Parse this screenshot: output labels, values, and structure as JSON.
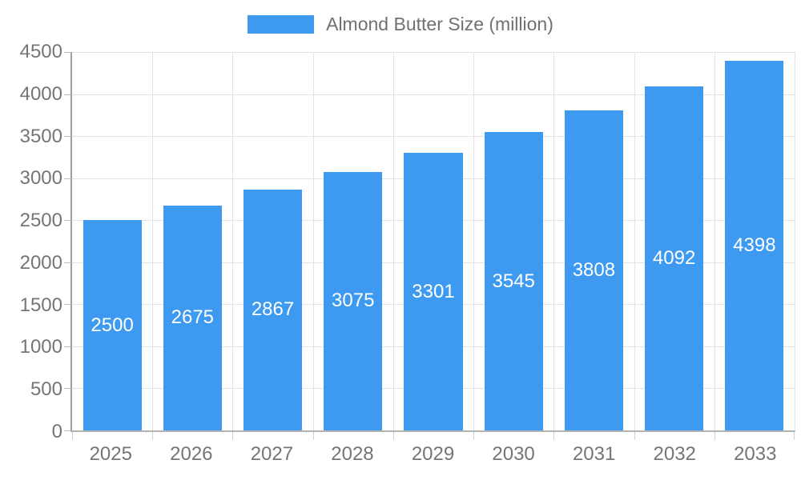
{
  "chart_data": {
    "type": "bar",
    "title": "",
    "legend_label": "Almond Butter Size (million)",
    "legend_position": "top",
    "categories": [
      "2025",
      "2026",
      "2027",
      "2028",
      "2029",
      "2030",
      "2031",
      "2032",
      "2033"
    ],
    "series": [
      {
        "name": "Almond Butter Size (million)",
        "values": [
          2500,
          2675,
          2867,
          3075,
          3301,
          3545,
          3808,
          4092,
          4398
        ]
      }
    ],
    "xlabel": "",
    "ylabel": "",
    "ylim": [
      0,
      4500
    ],
    "yticks": [
      0,
      500,
      1000,
      1500,
      2000,
      2500,
      3000,
      3500,
      4000,
      4500
    ],
    "grid": true,
    "value_labels": "inside-center",
    "colors": {
      "bar": "#3D9AF0",
      "value_label": "#FFFFFF",
      "axis_text": "#757575",
      "legend_text": "#707070",
      "grid_line": "#E3E3E3",
      "axis_line": "#9E9E9E",
      "tick_mark": "#BDBDBD",
      "background": "#FFFFFF"
    }
  }
}
